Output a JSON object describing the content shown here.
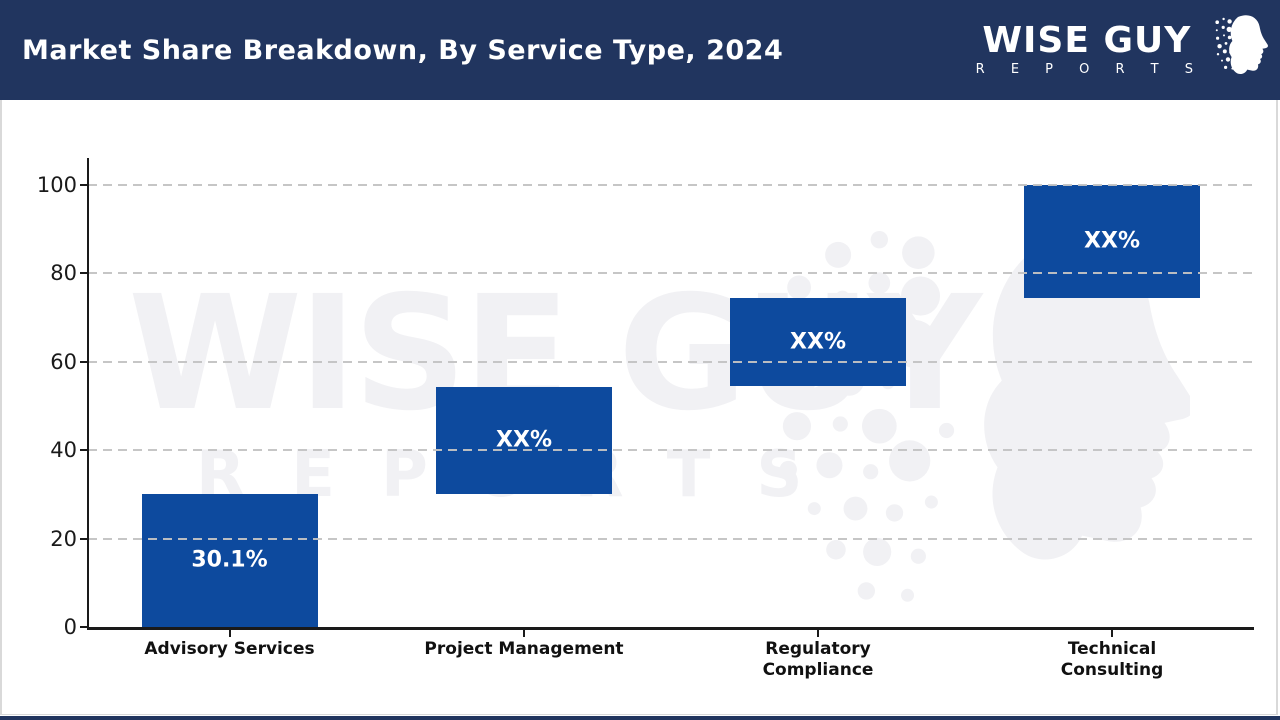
{
  "header": {
    "title": "Market Share Breakdown, By Service Type, 2024",
    "logo": {
      "name": "WISE GUY",
      "sub": "REPORTS"
    }
  },
  "watermark": {
    "name": "WISE GUY",
    "sub": "REPORTS"
  },
  "chart_data": {
    "type": "bar",
    "subtype": "waterfall",
    "title": "Market Share Breakdown, By Service Type, 2024",
    "categories": [
      "Advisory Services",
      "Project Management",
      "Regulatory Compliance",
      "Technical Consulting"
    ],
    "segments": [
      {
        "category": "Advisory Services",
        "label_lines": [
          "Advisory Services"
        ],
        "start": 0,
        "end": 30.1,
        "value_label": "30.1%"
      },
      {
        "category": "Project Management",
        "label_lines": [
          "Project Management"
        ],
        "start": 30.1,
        "end": 54.3,
        "value_label": "XX%"
      },
      {
        "category": "Regulatory Compliance",
        "label_lines": [
          "Regulatory",
          "Compliance"
        ],
        "start": 54.5,
        "end": 74.5,
        "value_label": "XX%"
      },
      {
        "category": "Technical Consulting",
        "label_lines": [
          "Technical",
          "Consulting"
        ],
        "start": 74.5,
        "end": 100,
        "value_label": "XX%"
      }
    ],
    "ylim": [
      0,
      100
    ],
    "yticks": [
      0,
      20,
      40,
      60,
      80,
      100
    ],
    "grid": {
      "horizontal": true,
      "style": "dashed"
    },
    "legend": null,
    "colors": {
      "bar": "#0d4a9e",
      "bar_label": "#ffffff",
      "axis": "#1a1a1a",
      "gridline": "#c3c3c3",
      "tick_label": "#1a1a1a",
      "category_label": "#111111",
      "header_bg": "#21355f",
      "panel_border": "#d9d9d9",
      "watermark": "#f1f1f4"
    }
  }
}
